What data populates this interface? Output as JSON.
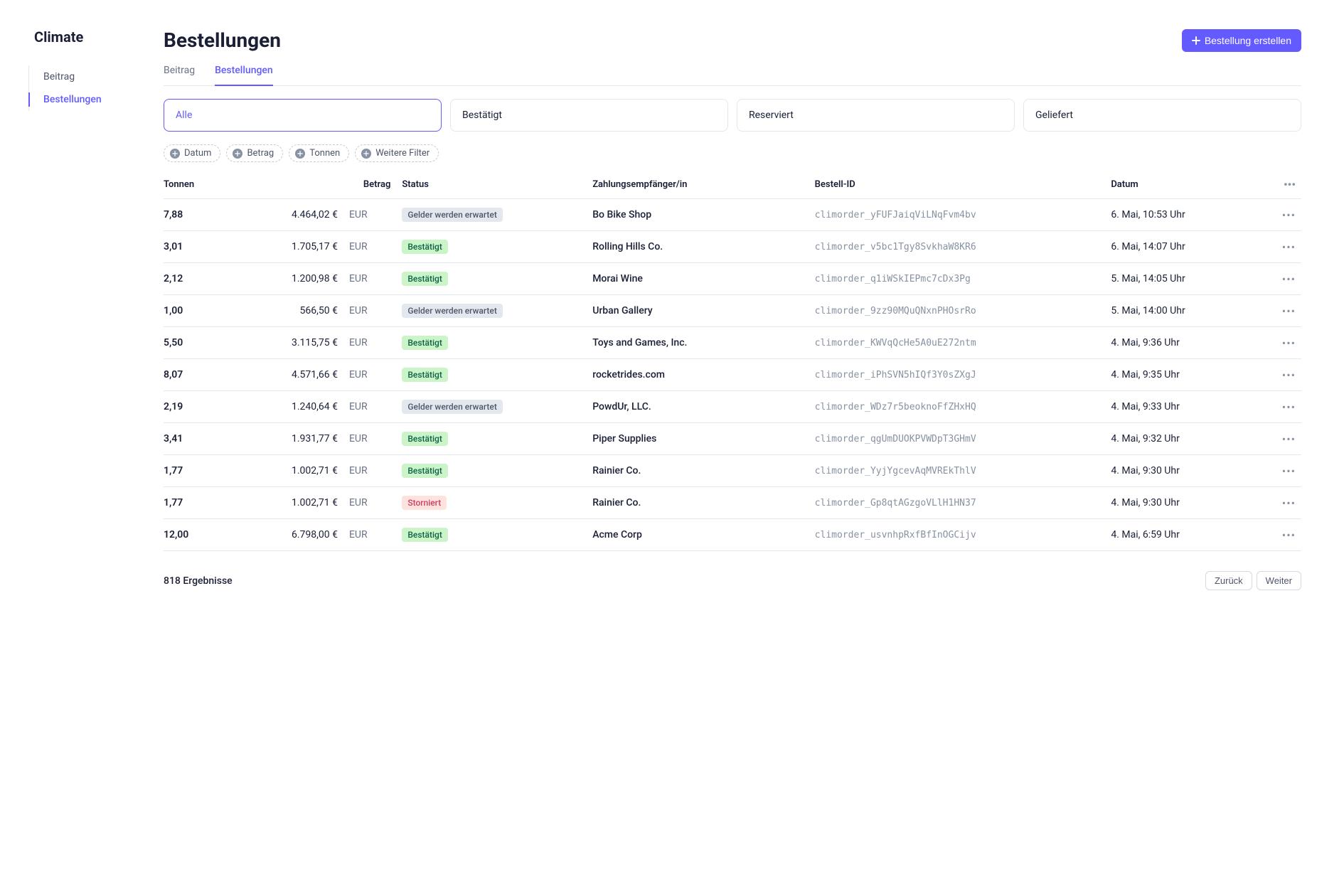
{
  "sidebar": {
    "title": "Climate",
    "items": [
      {
        "label": "Beitrag",
        "active": false
      },
      {
        "label": "Bestellungen",
        "active": true
      }
    ]
  },
  "header": {
    "title": "Bestellungen",
    "create_button": "Bestellung erstellen"
  },
  "tabs": [
    {
      "label": "Beitrag",
      "active": false
    },
    {
      "label": "Bestellungen",
      "active": true
    }
  ],
  "filter_cards": [
    {
      "label": "Alle",
      "active": true
    },
    {
      "label": "Bestätigt",
      "active": false
    },
    {
      "label": "Reserviert",
      "active": false
    },
    {
      "label": "Geliefert",
      "active": false
    }
  ],
  "filter_chips": [
    {
      "label": "Datum"
    },
    {
      "label": "Betrag"
    },
    {
      "label": "Tonnen"
    },
    {
      "label": "Weitere Filter"
    }
  ],
  "table": {
    "columns": {
      "tonnen": "Tonnen",
      "betrag": "Betrag",
      "status": "Status",
      "payee": "Zahlungsempfänger/in",
      "order_id": "Bestell-ID",
      "datum": "Datum"
    },
    "status_labels": {
      "pending": "Gelder werden erwartet",
      "confirmed": "Bestätigt",
      "cancelled": "Storniert"
    },
    "status_colors": {
      "pending": {
        "bg": "#e3e8ee",
        "fg": "#4f566b"
      },
      "confirmed": {
        "bg": "#cbf4c9",
        "fg": "#0e6245"
      },
      "cancelled": {
        "bg": "#fde2dd",
        "fg": "#cd3d64"
      }
    },
    "rows": [
      {
        "tonnen": "7,88",
        "amount": "4.464,02 €",
        "currency": "EUR",
        "status": "pending",
        "payee": "Bo Bike Shop",
        "order_id": "climorder_yFUFJaiqViLNqFvm4bv",
        "date": "6. Mai, 10:53 Uhr"
      },
      {
        "tonnen": "3,01",
        "amount": "1.705,17 €",
        "currency": "EUR",
        "status": "confirmed",
        "payee": "Rolling Hills Co.",
        "order_id": "climorder_v5bc1Tgy8SvkhaW8KR6",
        "date": "6. Mai, 14:07 Uhr"
      },
      {
        "tonnen": "2,12",
        "amount": "1.200,98 €",
        "currency": "EUR",
        "status": "confirmed",
        "payee": "Morai Wine",
        "order_id": "climorder_q1iWSkIEPmc7cDx3Pg",
        "date": "5. Mai, 14:05 Uhr"
      },
      {
        "tonnen": "1,00",
        "amount": "566,50 €",
        "currency": "EUR",
        "status": "pending",
        "payee": "Urban Gallery",
        "order_id": "climorder_9zz90MQuQNxnPHOsrRo",
        "date": "5. Mai, 14:00 Uhr"
      },
      {
        "tonnen": "5,50",
        "amount": "3.115,75 €",
        "currency": "EUR",
        "status": "confirmed",
        "payee": "Toys and Games, Inc.",
        "order_id": "climorder_KWVqQcHe5A0uE272ntm",
        "date": "4. Mai, 9:36 Uhr"
      },
      {
        "tonnen": "8,07",
        "amount": "4.571,66 €",
        "currency": "EUR",
        "status": "confirmed",
        "payee": "rocketrides.com",
        "order_id": "climorder_iPhSVN5hIQf3Y0sZXgJ",
        "date": "4. Mai, 9:35 Uhr"
      },
      {
        "tonnen": "2,19",
        "amount": "1.240,64 €",
        "currency": "EUR",
        "status": "pending",
        "payee": "PowdUr, LLC.",
        "order_id": "climorder_WDz7r5beoknoFfZHxHQ",
        "date": "4. Mai, 9:33 Uhr"
      },
      {
        "tonnen": "3,41",
        "amount": "1.931,77 €",
        "currency": "EUR",
        "status": "confirmed",
        "payee": "Piper Supplies",
        "order_id": "climorder_qgUmDUOKPVWDpT3GHmV",
        "date": "4. Mai, 9:32 Uhr"
      },
      {
        "tonnen": "1,77",
        "amount": "1.002,71 €",
        "currency": "EUR",
        "status": "confirmed",
        "payee": "Rainier Co.",
        "order_id": "climorder_YyjYgcevAqMVREkThlV",
        "date": "4. Mai, 9:30 Uhr"
      },
      {
        "tonnen": "1,77",
        "amount": "1.002,71 €",
        "currency": "EUR",
        "status": "cancelled",
        "payee": "Rainier Co.",
        "order_id": "climorder_Gp8qtAGzgoVLlH1HN37",
        "date": "4. Mai, 9:30 Uhr"
      },
      {
        "tonnen": "12,00",
        "amount": "6.798,00 €",
        "currency": "EUR",
        "status": "confirmed",
        "payee": "Acme Corp",
        "order_id": "climorder_usvnhpRxfBfInOGCijv",
        "date": "4. Mai, 6:59 Uhr"
      }
    ]
  },
  "footer": {
    "result_count": "818 Ergebnisse",
    "back": "Zurück",
    "next": "Weiter"
  },
  "colors": {
    "accent": "#635bff",
    "text": "#1a1f36",
    "muted": "#697386",
    "border": "#e3e8ee"
  }
}
